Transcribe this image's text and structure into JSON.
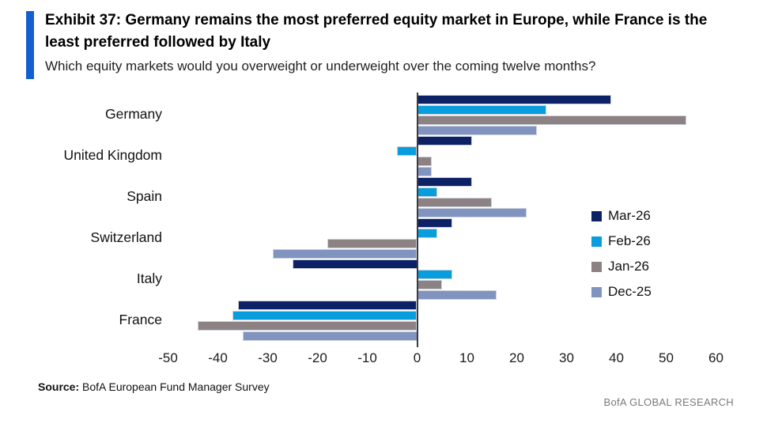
{
  "header": {
    "exhibit_title": "Exhibit 37: Germany remains the most preferred equity market in Europe, while France is the least preferred followed by Italy",
    "subtitle": "Which equity markets would you overweight or underweight over the coming twelve months?"
  },
  "chart_data": {
    "type": "bar",
    "orientation": "horizontal",
    "categories": [
      "Germany",
      "United Kingdom",
      "Spain",
      "Switzerland",
      "Italy",
      "France"
    ],
    "series": [
      {
        "name": "Mar-26",
        "color": "#0c2166",
        "values": [
          39,
          11,
          11,
          7,
          -25,
          -36
        ]
      },
      {
        "name": "Feb-26",
        "color": "#089ddd",
        "values": [
          26,
          -4,
          4,
          4,
          7,
          -37
        ]
      },
      {
        "name": "Jan-26",
        "color": "#8c8284",
        "values": [
          54,
          3,
          15,
          -18,
          5,
          -44
        ]
      },
      {
        "name": "Dec-25",
        "color": "#8193bf",
        "values": [
          24,
          3,
          22,
          -29,
          16,
          -35
        ]
      }
    ],
    "xlim": [
      -50,
      60
    ],
    "x_ticks": [
      -50,
      -40,
      -30,
      -20,
      -10,
      0,
      10,
      20,
      30,
      40,
      50,
      60
    ],
    "legend_position": "right",
    "grid": false,
    "title": "",
    "xlabel": "",
    "ylabel": ""
  },
  "footer": {
    "source_label": "Source:",
    "source_text": " BofA European Fund Manager Survey",
    "branding": "BofA GLOBAL RESEARCH"
  },
  "colors": {
    "accent": "#1160d2",
    "axis_line": "#3c3c3c"
  }
}
